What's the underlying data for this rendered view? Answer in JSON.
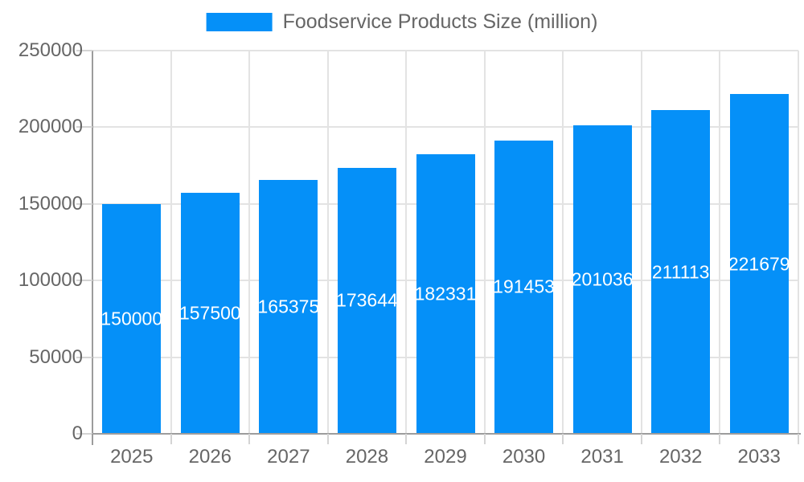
{
  "chart_data": {
    "type": "bar",
    "title": "",
    "legend": "Foodservice Products Size (million)",
    "legend_position": "top",
    "categories": [
      "2025",
      "2026",
      "2027",
      "2028",
      "2029",
      "2030",
      "2031",
      "2032",
      "2033"
    ],
    "values": [
      150000,
      157500,
      165375,
      173644,
      182331,
      191453,
      201036,
      211113,
      221679
    ],
    "value_labels": [
      "150000",
      "157500",
      "165375",
      "173644",
      "182331",
      "191453",
      "201036",
      "211113",
      "221679"
    ],
    "xlabel": "",
    "ylabel": "",
    "ylim": [
      0,
      250000
    ],
    "yticks": [
      0,
      50000,
      100000,
      150000,
      200000,
      250000
    ],
    "ytick_labels": [
      "0",
      "50000",
      "100000",
      "150000",
      "200000",
      "250000"
    ],
    "grid": true,
    "colors": {
      "bar": "#0590f8",
      "grid": "#e3e3e3",
      "axis": "#9c9c9c",
      "tick": "#d4d4d4",
      "text": "#666666",
      "value_text": "#ffffff",
      "background": "#ffffff"
    }
  }
}
